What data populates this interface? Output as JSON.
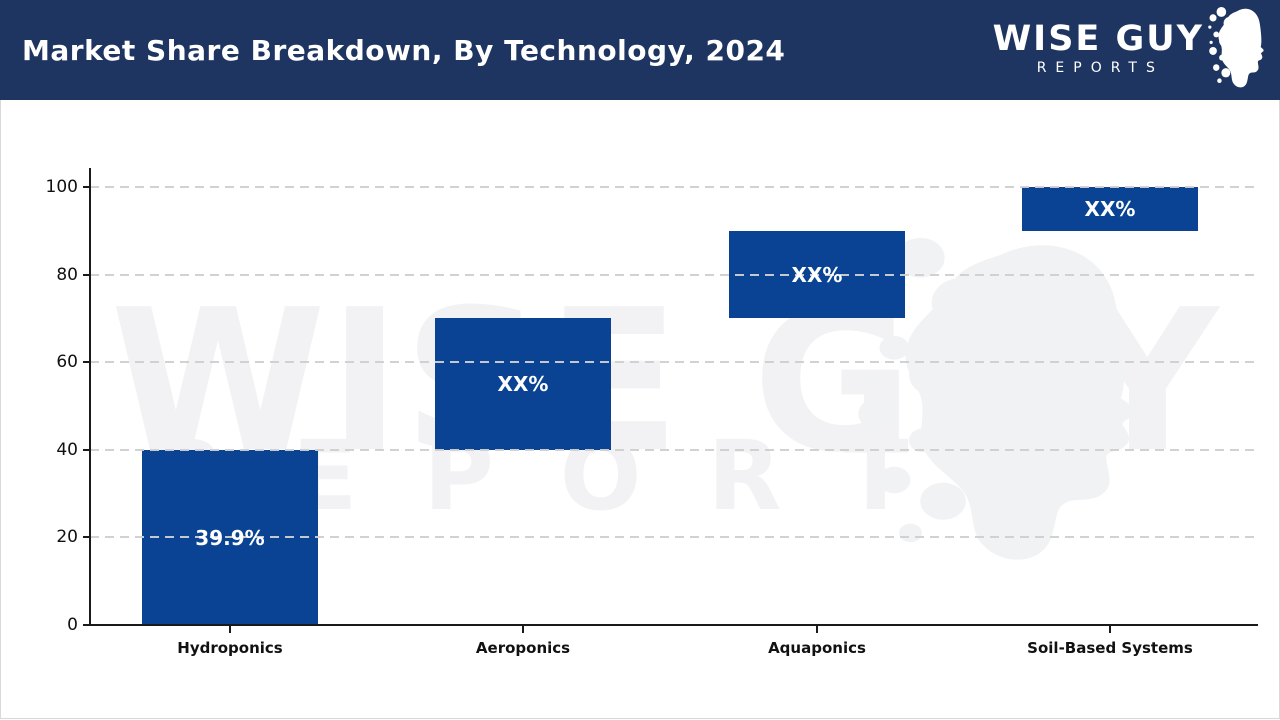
{
  "header": {
    "title": "Market Share Breakdown, By Technology, 2024",
    "logo_line1": "WISE GUY",
    "logo_line2": "REPORTS",
    "bg_color": "#1f3561"
  },
  "watermark": {
    "line1": "WISE GUY",
    "line2": "REPORTS"
  },
  "chart_data": {
    "type": "bar",
    "subtype": "waterfall",
    "title": "Market Share Breakdown, By Technology, 2024",
    "categories": [
      "Hydroponics",
      "Aeroponics",
      "Aquaponics",
      "Soil-Based Systems"
    ],
    "segments": [
      {
        "category": "Hydroponics",
        "start": 0,
        "end": 39.9,
        "label": "39.9%"
      },
      {
        "category": "Aeroponics",
        "start": 39.9,
        "end": 70,
        "label": "XX%"
      },
      {
        "category": "Aquaponics",
        "start": 70,
        "end": 90,
        "label": "XX%"
      },
      {
        "category": "Soil-Based Systems",
        "start": 90,
        "end": 100,
        "label": "XX%"
      }
    ],
    "values_estimated": [
      39.9,
      30.1,
      20,
      10
    ],
    "xlabel": "",
    "ylabel": "",
    "ylim": [
      0,
      100
    ],
    "yticks": [
      0,
      20,
      40,
      60,
      80,
      100
    ],
    "grid": "horizontal dashed",
    "legend": "none",
    "bar_color": "#0a4394",
    "label_color": "#ffffff"
  }
}
